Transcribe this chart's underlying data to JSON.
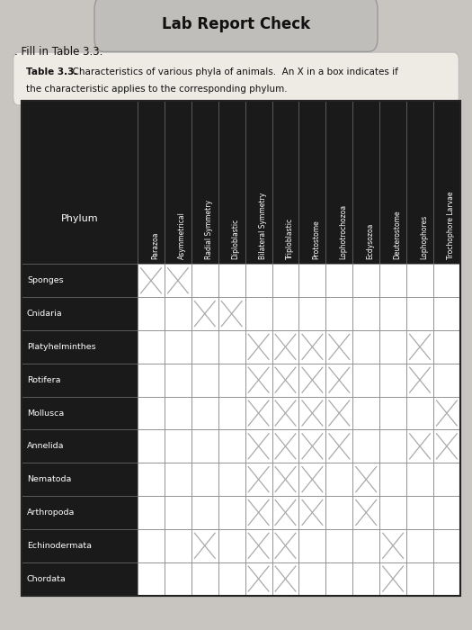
{
  "title": "Lab Report Check",
  "instruction": ". Fill in Table 3.3.",
  "table_title_bold": "Table 3.3.",
  "table_title_rest": "  Characteristics of various phyla of animals.  An X in a box indicates if the characteristic applies to the corresponding phylum.",
  "columns": [
    "Parazoa",
    "Asymmetrical",
    "Radial Symmetry",
    "Diploblastic",
    "Bilateral Symmetry",
    "Triploblastic",
    "Protostome",
    "Lophotrochozoa",
    "Ecdysozoa",
    "Deuterostome",
    "Lophophores",
    "Trochophore Larvae"
  ],
  "rows": [
    "Sponges",
    "Cnidaria",
    "Platyhelminthes",
    "Rotifera",
    "Mollusca",
    "Annelida",
    "Nematoda",
    "Arthropoda",
    "Echinodermata",
    "Chordata"
  ],
  "x_marks": [
    [
      0,
      1
    ],
    [
      2,
      3
    ],
    [
      4,
      5,
      6,
      7,
      10
    ],
    [
      4,
      5,
      6,
      7,
      10
    ],
    [
      4,
      5,
      6,
      7,
      11
    ],
    [
      4,
      5,
      6,
      7,
      10,
      11
    ],
    [
      4,
      5,
      6,
      8
    ],
    [
      4,
      5,
      6,
      8
    ],
    [
      2,
      4,
      5,
      9
    ],
    [
      4,
      5,
      9
    ]
  ],
  "header_bg": "#1a1a1a",
  "header_text": "#ffffff",
  "row_label_bg": "#1a1a1a",
  "row_label_text": "#ffffff",
  "cell_bg": "#ffffff",
  "grid_color": "#777777",
  "x_color": "#aaaaaa",
  "page_bg": "#c8c5c0",
  "caption_bg": "#eeeae4",
  "title_button_bg": "#c0bebb",
  "phylum_label": "Phylum"
}
